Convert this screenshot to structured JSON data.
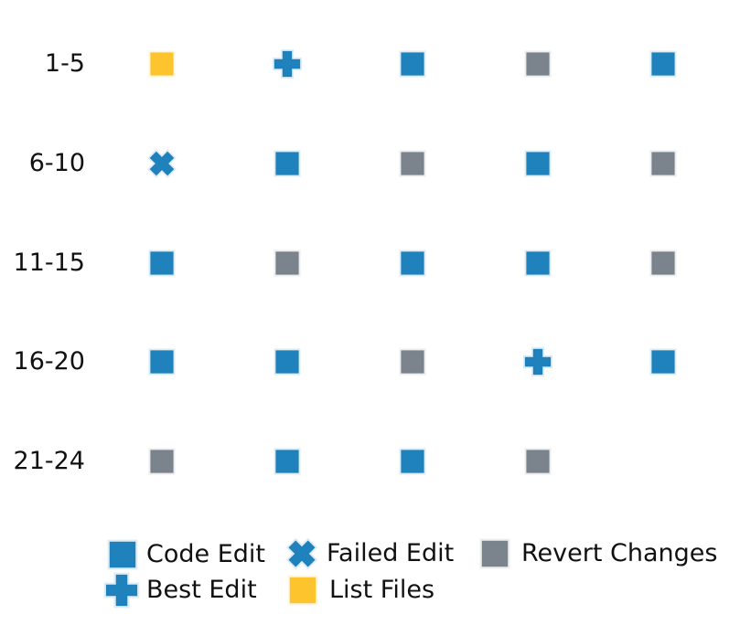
{
  "chart_data": {
    "type": "scatter",
    "description": "Tool-call grid: rows are step ranges, each row shows a sequence of tool actions as markers",
    "rows": [
      "1-5",
      "6-10",
      "11-15",
      "16-20",
      "21-24"
    ],
    "columns_per_row": [
      5,
      5,
      5,
      5,
      4
    ],
    "grid": [
      [
        "list_files",
        "best_edit",
        "code_edit",
        "revert_changes",
        "code_edit"
      ],
      [
        "failed_edit",
        "code_edit",
        "revert_changes",
        "code_edit",
        "revert_changes"
      ],
      [
        "code_edit",
        "revert_changes",
        "code_edit",
        "code_edit",
        "revert_changes"
      ],
      [
        "code_edit",
        "code_edit",
        "revert_changes",
        "best_edit",
        "code_edit"
      ],
      [
        "revert_changes",
        "code_edit",
        "code_edit",
        "revert_changes",
        null
      ]
    ],
    "markers": {
      "code_edit": {
        "shape": "square",
        "color": "#1f82bd"
      },
      "failed_edit": {
        "shape": "x",
        "color": "#1f82bd"
      },
      "revert_changes": {
        "shape": "square",
        "color": "#7b838c"
      },
      "best_edit": {
        "shape": "plus",
        "color": "#1f82bd"
      },
      "list_files": {
        "shape": "square",
        "color": "#fdc42d"
      }
    },
    "legend": [
      {
        "label": "Code Edit",
        "marker": "code_edit"
      },
      {
        "label": "Failed Edit",
        "marker": "failed_edit"
      },
      {
        "label": "Revert Changes",
        "marker": "revert_changes"
      },
      {
        "label": "Best Edit",
        "marker": "best_edit"
      },
      {
        "label": "List Files",
        "marker": "list_files"
      }
    ],
    "colors": {
      "blue": "#1f82bd",
      "gray": "#7b838c",
      "yellow": "#fdc42d",
      "text": "#111111",
      "background": "#ffffff"
    },
    "legend_position": "bottom",
    "grid_lines": "off",
    "axes": "off"
  }
}
